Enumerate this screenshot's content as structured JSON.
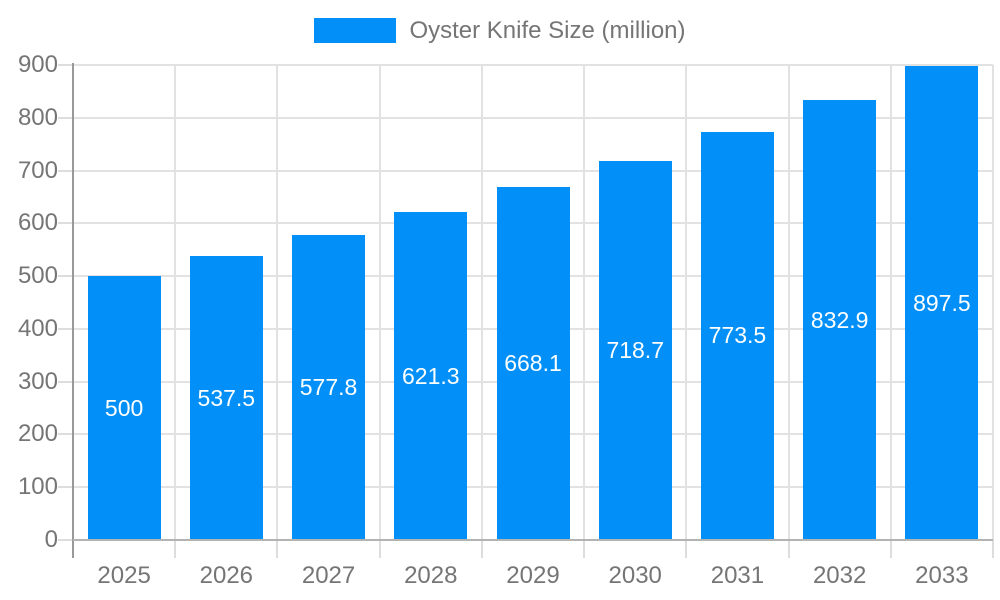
{
  "chart_data": {
    "type": "bar",
    "title": "Oyster Knife Size (million)",
    "legend": {
      "label": "Oyster Knife Size (million)",
      "position": "top"
    },
    "categories": [
      "2025",
      "2026",
      "2027",
      "2028",
      "2029",
      "2030",
      "2031",
      "2032",
      "2033"
    ],
    "values": [
      500,
      537.5,
      577.8,
      621.3,
      668.1,
      718.7,
      773.5,
      832.9,
      897.5
    ],
    "bar_labels": [
      "500",
      "537.5",
      "577.8",
      "621.3",
      "668.1",
      "718.7",
      "773.5",
      "832.9",
      "897.5"
    ],
    "xlabel": "",
    "ylabel": "",
    "ylim": [
      0,
      900
    ],
    "y_tick_step": 100,
    "y_tick_labels": [
      "0",
      "100",
      "200",
      "300",
      "400",
      "500",
      "600",
      "700",
      "800",
      "900"
    ],
    "grid": true,
    "colors": {
      "bar": "#0290f8",
      "bar_label": "#ffffff",
      "axis_text": "#757575",
      "gridline": "#e2e2e2",
      "tick": "#dddddd",
      "y_axis_line": "#999999",
      "x_axis_line": "#b3b3b3",
      "background": "#ffffff"
    }
  }
}
